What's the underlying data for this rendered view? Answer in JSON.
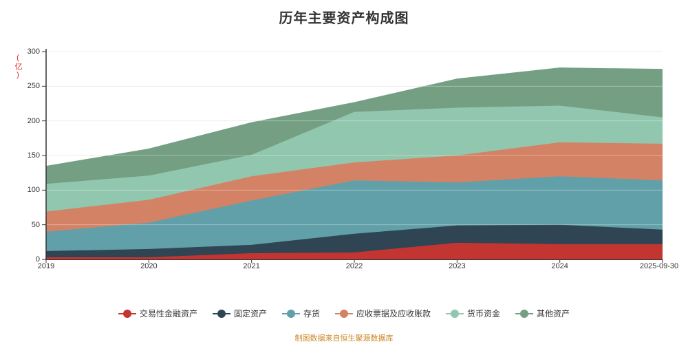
{
  "title": "历年主要资产构成图",
  "source_note": "制图数据来自恒生聚源数据库",
  "colors": {
    "background": "#ffffff",
    "title_text": "#333333",
    "axis_text": "#333333",
    "unit_text": "#e62129",
    "source_text": "#ca8622",
    "axis_line": "#333333",
    "gridline": "#e5e5e5"
  },
  "y_axis": {
    "unit_label": "(亿)",
    "ticks": [
      0,
      50,
      100,
      150,
      200,
      250,
      300
    ]
  },
  "chart_data": {
    "type": "area",
    "stacked": true,
    "title": "历年主要资产构成图",
    "xlabel": "",
    "ylabel": "(亿)",
    "ylim": [
      0,
      300
    ],
    "grid": true,
    "legend_position": "bottom",
    "x": [
      "2019",
      "2020",
      "2021",
      "2022",
      "2023",
      "2024",
      "2025-09-30"
    ],
    "series": [
      {
        "name": "交易性金融资产",
        "color": "#c23531",
        "values": [
          3,
          3,
          9,
          10,
          24,
          22,
          22
        ]
      },
      {
        "name": "固定资产",
        "color": "#2f4554",
        "values": [
          9,
          12,
          12,
          27,
          25,
          28,
          21
        ]
      },
      {
        "name": "存货",
        "color": "#61a0a8",
        "values": [
          28,
          38,
          64,
          77,
          62,
          70,
          71
        ]
      },
      {
        "name": "应收票据及应收账款",
        "color": "#d48265",
        "values": [
          29,
          33,
          35,
          26,
          39,
          49,
          53
        ]
      },
      {
        "name": "货币资金",
        "color": "#91c7ae",
        "values": [
          40,
          35,
          31,
          73,
          69,
          53,
          38
        ]
      },
      {
        "name": "其他资产",
        "color": "#749f83",
        "values": [
          25,
          38,
          46,
          13,
          41,
          54,
          69
        ]
      }
    ]
  }
}
